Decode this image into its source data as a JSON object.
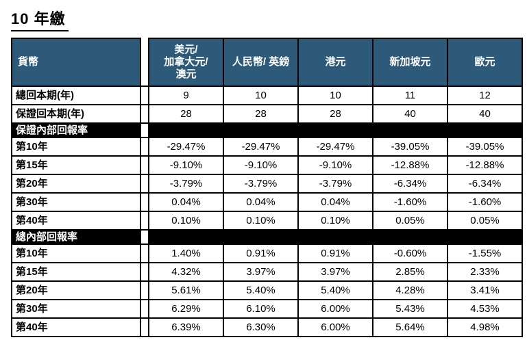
{
  "title": "10 年繳",
  "colors": {
    "header_bg": "#2e5a7a",
    "header_text": "#ffffff",
    "section_bg": "#000000",
    "section_text": "#ffffff",
    "border": "#000000",
    "page_bg": "#ffffff"
  },
  "chart_data": {
    "type": "table",
    "title": "10 年繳",
    "corner_header": "貨幣",
    "column_headers": [
      "美元/\n加拿大元/\n澳元",
      "人民幣/ 英鎊",
      "港元",
      "新加坡元",
      "歐元"
    ],
    "rows": [
      {
        "type": "data",
        "label": "總回本期(年)",
        "values": [
          "9",
          "10",
          "10",
          "11",
          "12"
        ]
      },
      {
        "type": "data",
        "label": "保證回本期(年)",
        "values": [
          "28",
          "28",
          "28",
          "40",
          "40"
        ]
      },
      {
        "type": "section",
        "label": "保證內部回報率"
      },
      {
        "type": "data",
        "label": "第10年",
        "values": [
          "-29.47%",
          "-29.47%",
          "-29.47%",
          "-39.05%",
          "-39.05%"
        ]
      },
      {
        "type": "data",
        "label": "第15年",
        "values": [
          "-9.10%",
          "-9.10%",
          "-9.10%",
          "-12.88%",
          "-12.88%"
        ]
      },
      {
        "type": "data",
        "label": "第20年",
        "values": [
          "-3.79%",
          "-3.79%",
          "-3.79%",
          "-6.34%",
          "-6.34%"
        ]
      },
      {
        "type": "data",
        "label": "第30年",
        "values": [
          "0.04%",
          "0.04%",
          "0.04%",
          "-1.60%",
          "-1.60%"
        ]
      },
      {
        "type": "data",
        "label": "第40年",
        "values": [
          "0.10%",
          "0.10%",
          "0.10%",
          "0.05%",
          "0.05%"
        ]
      },
      {
        "type": "section",
        "label": "總內部回報率"
      },
      {
        "type": "data",
        "label": "第10年",
        "values": [
          "1.40%",
          "0.91%",
          "0.91%",
          "-0.60%",
          "-1.55%"
        ]
      },
      {
        "type": "data",
        "label": "第15年",
        "values": [
          "4.32%",
          "3.97%",
          "3.97%",
          "2.85%",
          "2.33%"
        ]
      },
      {
        "type": "data",
        "label": "第20年",
        "values": [
          "5.61%",
          "5.40%",
          "5.40%",
          "4.28%",
          "3.41%"
        ]
      },
      {
        "type": "data",
        "label": "第30年",
        "values": [
          "6.29%",
          "6.10%",
          "6.00%",
          "5.43%",
          "4.53%"
        ]
      },
      {
        "type": "data",
        "label": "第40年",
        "values": [
          "6.39%",
          "6.30%",
          "6.00%",
          "5.64%",
          "4.98%"
        ]
      }
    ]
  }
}
